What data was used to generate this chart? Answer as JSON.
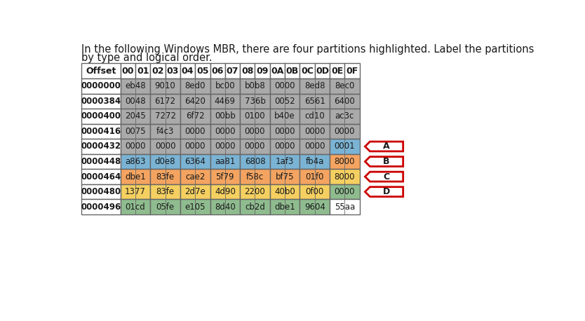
{
  "title_text1": "In the following Windows MBR, there are four partitions highlighted. Label the partitions",
  "title_text2": "by type and logical order.",
  "header_cols": [
    "Offset",
    "00",
    "01",
    "02",
    "03",
    "04",
    "05",
    "06",
    "07",
    "08",
    "09",
    "0A",
    "0B",
    "0C",
    "0D",
    "0E",
    "0F"
  ],
  "rows": [
    {
      "offset": "0000000",
      "cells": [
        "eb48",
        "9010",
        "8ed0",
        "bc00",
        "b0b8",
        "0000",
        "8ed8",
        "8ec0"
      ]
    },
    {
      "offset": "0000384",
      "cells": [
        "0048",
        "6172",
        "6420",
        "4469",
        "736b",
        "0052",
        "6561",
        "6400"
      ]
    },
    {
      "offset": "0000400",
      "cells": [
        "2045",
        "7272",
        "6f72",
        "00bb",
        "0100",
        "b40e",
        "cd10",
        "ac3c"
      ]
    },
    {
      "offset": "0000416",
      "cells": [
        "0075",
        "f4c3",
        "0000",
        "0000",
        "0000",
        "0000",
        "0000",
        "0000"
      ]
    },
    {
      "offset": "0000432",
      "cells": [
        "0000",
        "0000",
        "0000",
        "0000",
        "0000",
        "0000",
        "0000",
        "0001"
      ]
    },
    {
      "offset": "0000448",
      "cells": [
        "a863",
        "d0e8",
        "6364",
        "aa81",
        "6808",
        "1af3",
        "fb4a",
        "8000"
      ]
    },
    {
      "offset": "0000464",
      "cells": [
        "dbe1",
        "83fe",
        "cae2",
        "5f79",
        "f58c",
        "bf75",
        "01f0",
        "8000"
      ]
    },
    {
      "offset": "0000480",
      "cells": [
        "1377",
        "83fe",
        "2d7e",
        "4d90",
        "2200",
        "40b0",
        "0f00",
        "0000"
      ]
    },
    {
      "offset": "0000496",
      "cells": [
        "01cd",
        "05fe",
        "e105",
        "8d40",
        "cb2d",
        "dbe1",
        "9604",
        "55aa"
      ]
    }
  ],
  "color_gray": "#aaaaaa",
  "color_blue": "#7ab3d4",
  "color_orange": "#f4a460",
  "color_yellow": "#f5d060",
  "color_green": "#8fbc8f",
  "color_white": "#ffffff",
  "color_text": "#1a1a1a",
  "partition_labels": [
    "A",
    "B",
    "C",
    "D"
  ],
  "arrow_color": "#cc0000",
  "row_colors": {
    "0000432": {
      "default": "gray",
      "last": "blue"
    },
    "0000448": {
      "default": "blue",
      "last": "orange"
    },
    "0000464": {
      "default": "orange",
      "last": "yellow"
    },
    "0000480": {
      "default": "yellow",
      "last": "green"
    },
    "0000496": {
      "default": "green",
      "last": "white"
    }
  }
}
